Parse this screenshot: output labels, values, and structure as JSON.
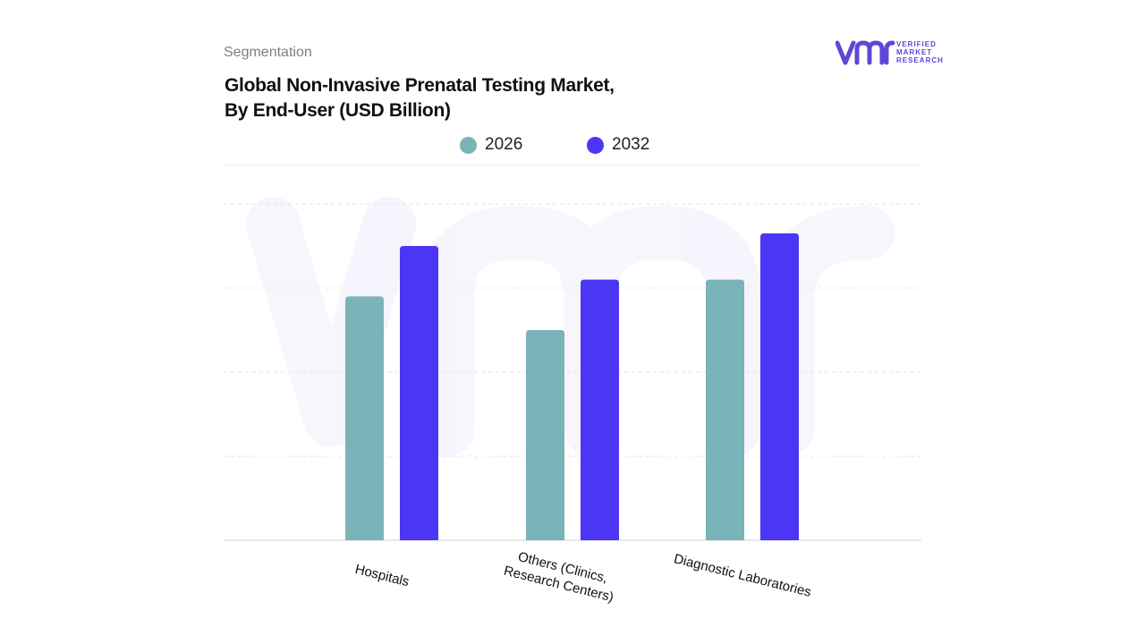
{
  "header": {
    "section_label": "Segmentation",
    "title_line1": "Global Non-Invasive Prenatal Testing Market,",
    "title_line2": "By End-User (USD Billion)"
  },
  "logo": {
    "mark": "vmr",
    "line1": "VERIFIED",
    "line2": "MARKET",
    "line3": "RESEARCH",
    "color": "#5b48d8"
  },
  "chart_data": {
    "type": "bar",
    "categories": [
      "Hospitals",
      "Others (Clinics, Research Centers)",
      "Diagnostic Laboratories"
    ],
    "category_lines": [
      [
        "Hospitals"
      ],
      [
        "Others (Clinics,",
        "Research Centers)"
      ],
      [
        "Diagnostic Laboratories"
      ]
    ],
    "series": [
      {
        "name": "2026",
        "color": "#7ab3b8",
        "values": [
          2.9,
          2.5,
          3.1
        ]
      },
      {
        "name": "2032",
        "color": "#4b36f5",
        "values": [
          3.5,
          3.1,
          3.65
        ]
      }
    ],
    "ylim": [
      0,
      4
    ],
    "grid": true,
    "legend": "top-center",
    "xlabel": "",
    "ylabel": ""
  }
}
